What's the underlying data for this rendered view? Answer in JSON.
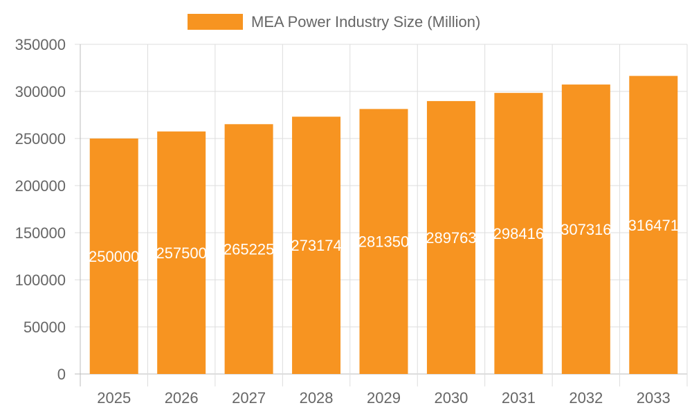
{
  "chart_data": {
    "type": "bar",
    "title": "",
    "xlabel": "",
    "ylabel": "",
    "legend": {
      "position": "top",
      "entries": [
        "MEA Power Industry Size (Million)"
      ]
    },
    "categories": [
      "2025",
      "2026",
      "2027",
      "2028",
      "2029",
      "2030",
      "2031",
      "2032",
      "2033"
    ],
    "series": [
      {
        "name": "MEA Power Industry Size (Million)",
        "values": [
          250000,
          257500,
          265225,
          273174,
          281350,
          289763,
          298416,
          307316,
          316471
        ],
        "color": "#f79421"
      }
    ],
    "data_labels": [
      "250000",
      "257500",
      "265225",
      "273174",
      "281350",
      "289763",
      "298416",
      "307316",
      "316471"
    ],
    "ylim": [
      0,
      350000
    ],
    "yticks": [
      0,
      50000,
      100000,
      150000,
      200000,
      250000,
      300000,
      350000
    ],
    "ytick_labels": [
      "0",
      "50000",
      "100000",
      "150000",
      "200000",
      "250000",
      "300000",
      "350000"
    ],
    "grid": true
  }
}
